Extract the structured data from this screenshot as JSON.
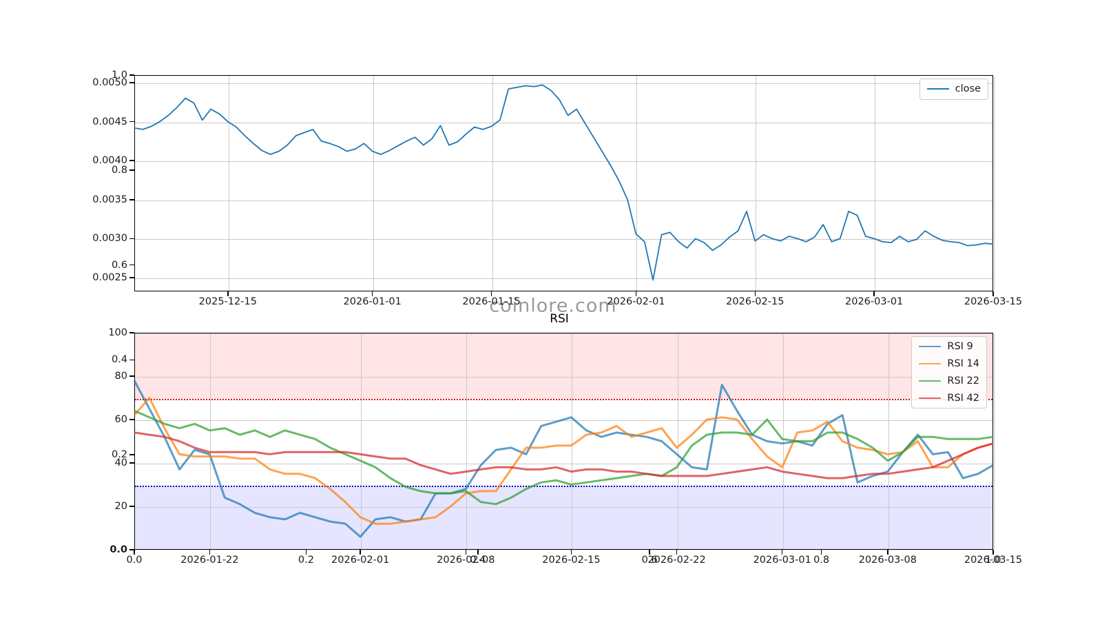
{
  "watermark": "coinlore.com",
  "price_chart": {
    "legend_label": "close",
    "line_color": "#1f77b4",
    "y_tick_labels": [
      "0.0050",
      "0.0045",
      "0.0040",
      "0.0035",
      "0.0030",
      "0.0025"
    ],
    "x_tick_labels": [
      "2025-12-15",
      "2026-01-01",
      "2026-01-15",
      "2026-02-01",
      "2026-02-15",
      "2026-03-01",
      "2026-03-15"
    ],
    "x_tick_dates": [
      "2025-12-15",
      "2026-01-01",
      "2026-01-15",
      "2026-02-01",
      "2026-02-15",
      "2026-03-01",
      "2026-03-15"
    ]
  },
  "rsi_chart": {
    "title": "RSI",
    "y_tick_labels": [
      "100",
      "80",
      "60",
      "40",
      "20"
    ],
    "x_tick_labels": [
      "2026-01-22",
      "2026-02-01",
      "2026-02-08",
      "2026-02-15",
      "2026-02-22",
      "2026-03-01",
      "2026-03-08",
      "2026-03-15"
    ],
    "x_tick_dates": [
      "2026-01-22",
      "2026-02-01",
      "2026-02-08",
      "2026-02-15",
      "2026-02-22",
      "2026-03-01",
      "2026-03-08",
      "2026-03-15"
    ],
    "overbought_level": 70,
    "oversold_level": 30,
    "overbought_line_color": "#cc0000",
    "oversold_line_color": "#0000cc",
    "overbought_band_color": "rgba(255,0,0,0.10)",
    "oversold_band_color": "rgba(0,0,255,0.10)"
  },
  "hidden_axis": {
    "y_tick_labels": [
      "1.0",
      "0.8",
      "0.6",
      "0.4",
      "0.2",
      "0.0"
    ],
    "x_tick_labels": [
      "0.0",
      "0.2",
      "0.4",
      "0.6",
      "0.8",
      "1.0"
    ]
  },
  "chart_data": [
    {
      "type": "line",
      "title": "",
      "legend_position": "upper right",
      "grid": true,
      "ylim": [
        0.0025,
        0.005
      ],
      "x_range": {
        "start": "2025-12-04",
        "end": "2026-03-15",
        "freq": "daily"
      },
      "series": [
        {
          "name": "close",
          "color": "#1f77b4",
          "width": 1.8,
          "values": [
            0.00442,
            0.0044,
            0.00444,
            0.0045,
            0.00458,
            0.00468,
            0.0048,
            0.00474,
            0.00452,
            0.00466,
            0.0046,
            0.0045,
            0.00443,
            0.00432,
            0.00422,
            0.00413,
            0.00408,
            0.00412,
            0.0042,
            0.00432,
            0.00436,
            0.0044,
            0.00425,
            0.00422,
            0.00418,
            0.00412,
            0.00415,
            0.00422,
            0.00412,
            0.00408,
            0.00413,
            0.00419,
            0.00425,
            0.0043,
            0.0042,
            0.00428,
            0.00445,
            0.0042,
            0.00424,
            0.00434,
            0.00443,
            0.0044,
            0.00444,
            0.00452,
            0.00492,
            0.00494,
            0.00496,
            0.00495,
            0.00497,
            0.0049,
            0.00478,
            0.00458,
            0.00466,
            0.00448,
            0.0043,
            0.00412,
            0.00394,
            0.00374,
            0.0035,
            0.00306,
            0.00296,
            0.00247,
            0.00305,
            0.00308,
            0.00296,
            0.00288,
            0.003,
            0.00295,
            0.00285,
            0.00292,
            0.00302,
            0.0031,
            0.00335,
            0.00297,
            0.00305,
            0.003,
            0.00297,
            0.00303,
            0.003,
            0.00296,
            0.00302,
            0.00318,
            0.00296,
            0.003,
            0.00335,
            0.0033,
            0.00303,
            0.003,
            0.00296,
            0.00295,
            0.00303,
            0.00296,
            0.00299,
            0.0031,
            0.00303,
            0.00298,
            0.00296,
            0.00295,
            0.00291,
            0.00292,
            0.00294,
            0.00293
          ]
        }
      ]
    },
    {
      "type": "line",
      "title": "RSI",
      "legend_position": "upper right",
      "grid": true,
      "ylim": [
        0,
        100
      ],
      "x_range": {
        "start": "2026-01-17",
        "end": "2026-03-15",
        "freq": "daily"
      },
      "series": [
        {
          "name": "RSI 9",
          "color": "rgba(31,119,180,0.72)",
          "width": 3,
          "values": [
            78,
            65,
            52,
            37,
            46,
            44,
            24,
            21,
            17,
            15,
            14,
            17,
            15,
            13,
            12,
            6,
            14,
            15,
            13,
            14,
            26,
            26,
            28,
            39,
            46,
            47,
            44,
            57,
            59,
            61,
            55,
            52,
            54,
            53,
            52,
            50,
            44,
            38,
            37,
            76,
            64,
            53,
            50,
            49,
            50,
            48,
            58,
            62,
            31,
            34,
            36,
            45,
            53,
            44,
            45,
            33,
            35,
            39
          ]
        },
        {
          "name": "RSI 14",
          "color": "rgba(255,127,14,0.72)",
          "width": 3,
          "values": [
            62,
            70,
            56,
            44,
            43,
            43,
            43,
            42,
            42,
            37,
            35,
            35,
            33,
            28,
            22,
            15,
            12,
            12,
            13,
            14,
            15,
            20,
            26,
            27,
            27,
            37,
            47,
            47,
            48,
            48,
            53,
            54,
            57,
            52,
            54,
            56,
            47,
            53,
            60,
            61,
            60,
            51,
            43,
            38,
            54,
            55,
            59,
            50,
            47,
            46,
            44,
            45,
            50,
            38,
            38,
            44,
            47,
            49
          ]
        },
        {
          "name": "RSI 22",
          "color": "rgba(44,160,44,0.72)",
          "width": 3,
          "values": [
            64,
            61,
            58,
            56,
            58,
            55,
            56,
            53,
            55,
            52,
            55,
            53,
            51,
            47,
            44,
            41,
            38,
            33,
            29,
            27,
            26,
            26,
            27,
            22,
            21,
            24,
            28,
            31,
            32,
            30,
            31,
            32,
            33,
            34,
            35,
            34,
            38,
            48,
            53,
            54,
            54,
            53,
            60,
            51,
            50,
            50,
            54,
            54,
            51,
            47,
            41,
            45,
            52,
            52,
            51,
            51,
            51,
            52
          ]
        },
        {
          "name": "RSI 42",
          "color": "rgba(214,39,40,0.72)",
          "width": 3,
          "values": [
            54,
            53,
            52,
            50,
            47,
            45,
            45,
            45,
            45,
            44,
            45,
            45,
            45,
            45,
            45,
            44,
            43,
            42,
            42,
            39,
            37,
            35,
            36,
            37,
            38,
            38,
            37,
            37,
            38,
            36,
            37,
            37,
            36,
            36,
            35,
            34,
            34,
            34,
            34,
            35,
            36,
            37,
            38,
            36,
            35,
            34,
            33,
            33,
            34,
            35,
            35,
            36,
            37,
            38,
            41,
            44,
            47,
            49
          ]
        }
      ]
    }
  ]
}
